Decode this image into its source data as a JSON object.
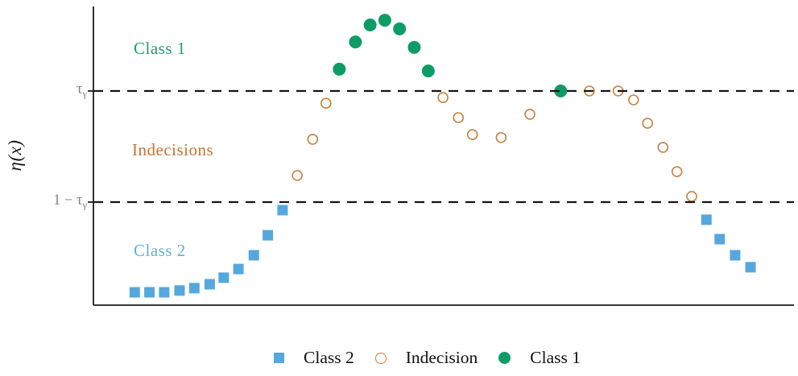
{
  "figure": {
    "background": "#ffffff"
  },
  "axes": {
    "y_label": "η(x)",
    "spine_color": "#1c1c1c",
    "tick_color": "#828282",
    "tick_labels": [
      {
        "prefix": "",
        "base": "τ",
        "sub": "γ"
      },
      {
        "prefix": "1 − ",
        "base": "τ",
        "sub": "γ"
      }
    ]
  },
  "annotations": [
    {
      "text": "Class 1",
      "color": "#18a275"
    },
    {
      "text": "Indecisions",
      "color": "#c8722f"
    },
    {
      "text": "Class 2",
      "color": "#68b0d5"
    }
  ],
  "legend": {
    "items": [
      {
        "label": "Class 2",
        "marker": "square",
        "color": "#55a8dc"
      },
      {
        "label": "Indecision",
        "marker": "open-circle",
        "color": "#c8813f"
      },
      {
        "label": "Class 1",
        "marker": "circle",
        "color": "#0e9c66"
      }
    ]
  },
  "chart_data": {
    "type": "scatter",
    "title": "",
    "xlabel": "",
    "ylabel": "η(x)",
    "x_range": [
      0,
      1
    ],
    "y_range": [
      0,
      1
    ],
    "grid": false,
    "legend_position": "bottom-center",
    "dash_color": "#141414",
    "thresholds": [
      {
        "label": "τγ",
        "y": 0.717
      },
      {
        "label": "1 − τγ",
        "y": 0.345
      }
    ],
    "series": [
      {
        "name": "Class 2",
        "marker": "square",
        "color": "#55a8dc",
        "size": 13,
        "points": [
          [
            0.059,
            0.043
          ],
          [
            0.08,
            0.043
          ],
          [
            0.101,
            0.043
          ],
          [
            0.123,
            0.049
          ],
          [
            0.144,
            0.057
          ],
          [
            0.166,
            0.07
          ],
          [
            0.186,
            0.092
          ],
          [
            0.207,
            0.121
          ],
          [
            0.229,
            0.167
          ],
          [
            0.249,
            0.234
          ],
          [
            0.27,
            0.318
          ],
          [
            0.875,
            0.286
          ],
          [
            0.894,
            0.221
          ],
          [
            0.916,
            0.167
          ],
          [
            0.938,
            0.127
          ]
        ]
      },
      {
        "name": "Indecision",
        "marker": "open-circle",
        "color": "#c8813f",
        "size": 12,
        "points": [
          [
            0.291,
            0.434
          ],
          [
            0.313,
            0.555
          ],
          [
            0.332,
            0.676
          ],
          [
            0.499,
            0.695
          ],
          [
            0.521,
            0.628
          ],
          [
            0.541,
            0.571
          ],
          [
            0.582,
            0.561
          ],
          [
            0.623,
            0.639
          ],
          [
            0.708,
            0.717
          ],
          [
            0.749,
            0.717
          ],
          [
            0.771,
            0.687
          ],
          [
            0.791,
            0.609
          ],
          [
            0.813,
            0.528
          ],
          [
            0.833,
            0.447
          ],
          [
            0.854,
            0.364
          ]
        ]
      },
      {
        "name": "Class 1",
        "marker": "circle",
        "color": "#0e9c66",
        "size": 16,
        "points": [
          [
            0.351,
            0.79
          ],
          [
            0.374,
            0.881
          ],
          [
            0.395,
            0.938
          ],
          [
            0.416,
            0.954
          ],
          [
            0.437,
            0.925
          ],
          [
            0.458,
            0.863
          ],
          [
            0.478,
            0.784
          ],
          [
            0.667,
            0.717
          ]
        ]
      }
    ]
  }
}
